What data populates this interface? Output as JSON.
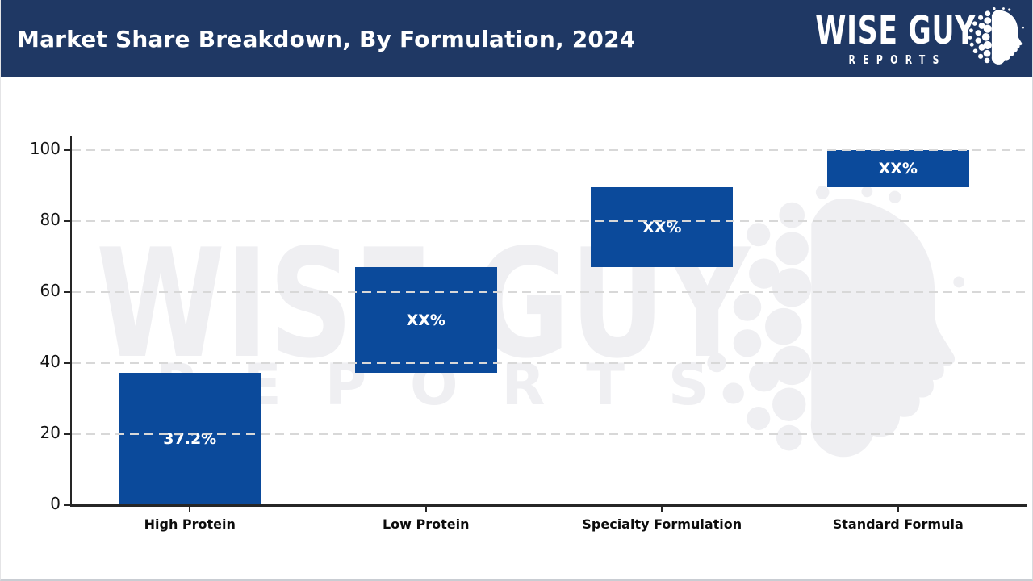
{
  "header": {
    "title": "Market Share Breakdown, By Formulation, 2024",
    "bg_color": "#1F3864",
    "text_color": "#FFFFFF",
    "logo": {
      "name": "Wise Guy Reports",
      "line1": "WISE GUY",
      "line2": "REPORTS"
    }
  },
  "watermark": {
    "line1": "WISE GUY",
    "line2": "REPORTS",
    "color": "#EFEFF2"
  },
  "chart_data": {
    "type": "bar",
    "subtype": "floating-waterfall",
    "title": "Market Share Breakdown, By Formulation, 2024",
    "categories": [
      "High Protein",
      "Low Protein",
      "Specialty Formulation",
      "Standard Formula"
    ],
    "segments": [
      {
        "category": "High Protein",
        "start": 0,
        "end": 37.2,
        "label": "37.2%"
      },
      {
        "category": "Low Protein",
        "start": 37.2,
        "end": 67,
        "label": "XX%"
      },
      {
        "category": "Specialty Formulation",
        "start": 67,
        "end": 89.4,
        "label": "XX%"
      },
      {
        "category": "Standard Formula",
        "start": 89.4,
        "end": 100,
        "label": "XX%"
      }
    ],
    "xlabel": "",
    "ylabel": "",
    "ylim": [
      0,
      104
    ],
    "yticks": [
      0,
      20,
      40,
      60,
      80,
      100
    ],
    "grid": "horizontal-dashed",
    "legend": "none",
    "colors": {
      "bar": "#0B4A9B",
      "bar_label": "#FFFFFF",
      "grid": "#D8D8D8",
      "axis": "#262626",
      "tick_text": "#141414"
    }
  }
}
